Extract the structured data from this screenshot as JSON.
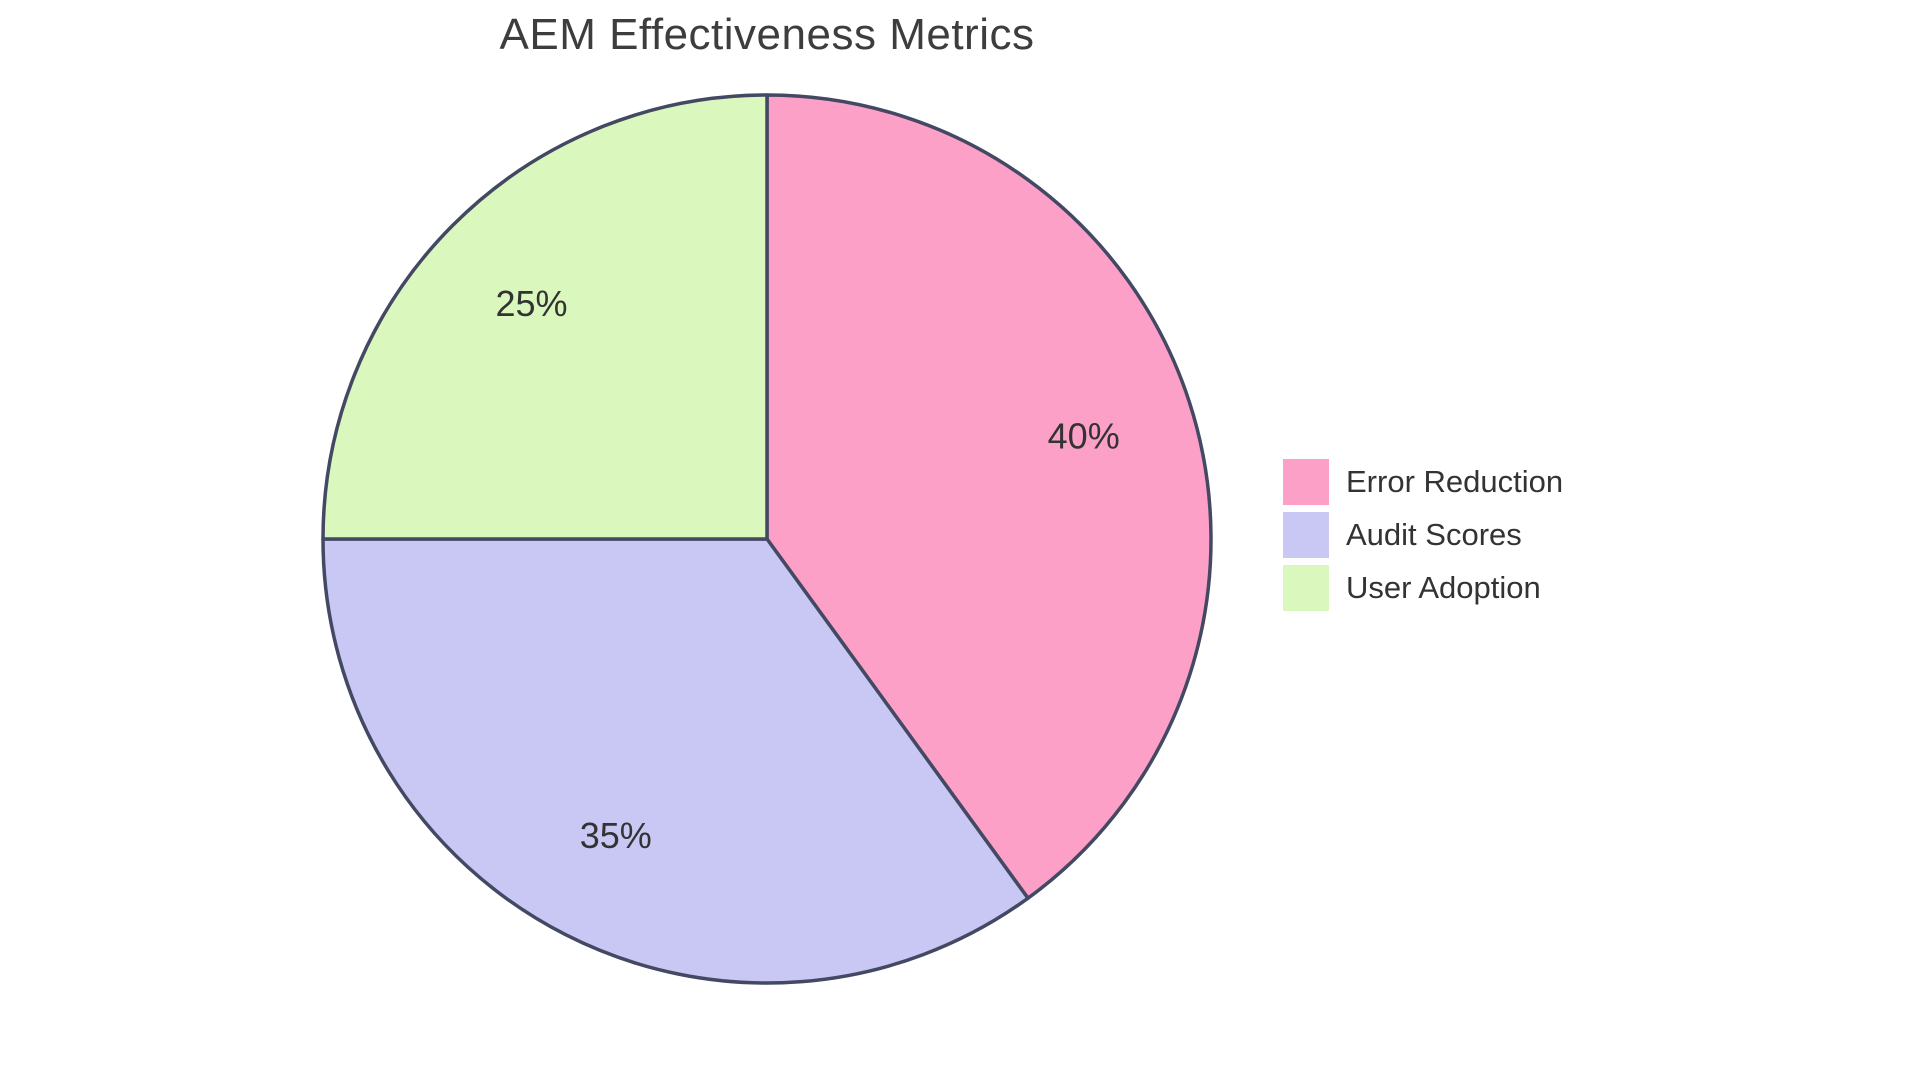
{
  "chart_data": {
    "type": "pie",
    "title": "AEM Effectiveness Metrics",
    "start_angle_deg": 0,
    "direction": "clockwise",
    "legend_position": "right",
    "stroke_color": "#434863",
    "stroke_width": 3.5,
    "label_color": "#333333",
    "label_radius_fraction": 0.75,
    "slices": [
      {
        "label": "Error Reduction",
        "value": 40,
        "display": "40%",
        "color": "#FCA0C8"
      },
      {
        "label": "Audit Scores",
        "value": 35,
        "display": "35%",
        "color": "#C9C8F5"
      },
      {
        "label": "User Adoption",
        "value": 25,
        "display": "25%",
        "color": "#DAF7BD"
      }
    ]
  }
}
